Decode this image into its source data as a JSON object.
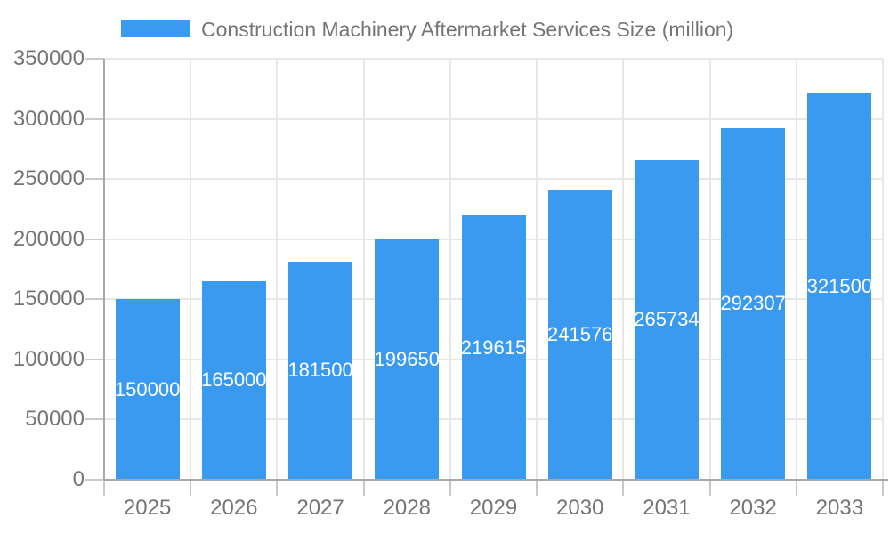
{
  "chart_data": {
    "type": "bar",
    "title": "Construction Machinery Aftermarket Services Size (million)",
    "legend_position": "top",
    "categories": [
      "2025",
      "2026",
      "2027",
      "2028",
      "2029",
      "2030",
      "2031",
      "2032",
      "2033"
    ],
    "series": [
      {
        "name": "Construction Machinery Aftermarket Services Size (million)",
        "values": [
          150000,
          165000,
          181500,
          199650,
          219615,
          241576,
          265734,
          292307,
          321500
        ]
      }
    ],
    "bar_value_labels": [
      "150000",
      "165000",
      "181500",
      "199650",
      "219615",
      "241576",
      "265734",
      "292307",
      "321500"
    ],
    "xlabel": "",
    "ylabel": "",
    "ylim": [
      0,
      350000
    ],
    "yticks": [
      0,
      50000,
      100000,
      150000,
      200000,
      250000,
      300000,
      350000
    ],
    "grid": true
  },
  "colors": {
    "bar": "#3A9AEF",
    "grid": "#e7e7e7",
    "axis": "#a8a8a8",
    "tick": "#c9c9c9",
    "axis_text": "#757575",
    "bar_label_text": "#ffffff",
    "background": "#ffffff"
  }
}
